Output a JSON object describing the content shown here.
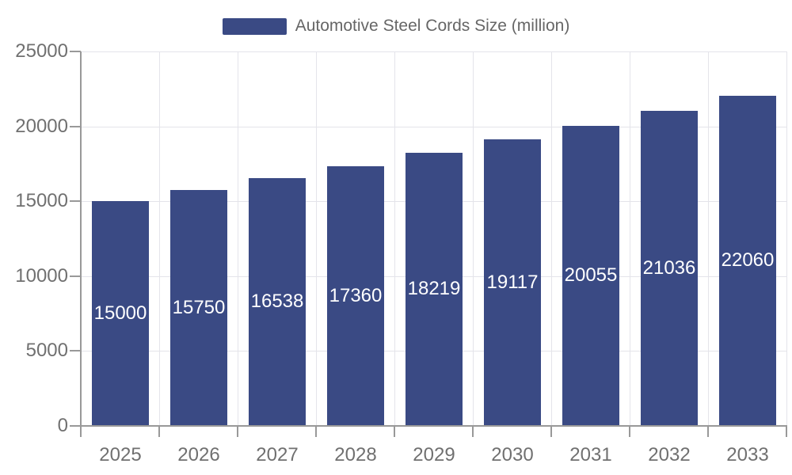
{
  "chart_data": {
    "type": "bar",
    "legend": "Automotive Steel Cords Size (million)",
    "categories": [
      "2025",
      "2026",
      "2027",
      "2028",
      "2029",
      "2030",
      "2031",
      "2032",
      "2033"
    ],
    "series": [
      {
        "name": "Automotive Steel Cords Size (million)",
        "values": [
          15000,
          15750,
          16538,
          17360,
          18219,
          19117,
          20055,
          21036,
          22060
        ]
      }
    ],
    "title": "",
    "xlabel": "",
    "ylabel": "",
    "ylim": [
      0,
      25000
    ],
    "yticks": [
      0,
      5000,
      10000,
      15000,
      20000,
      25000
    ],
    "grid": "both",
    "legend_position": "top-center",
    "bar_labels_visible": true,
    "colors": {
      "bar": "#3A4A84",
      "bar_label": "#FFFFFF",
      "axis": "#999999",
      "gridline": "#E4E4EA",
      "tick_label": "#707070",
      "legend_text": "#666666",
      "background": "#FFFFFF"
    }
  }
}
